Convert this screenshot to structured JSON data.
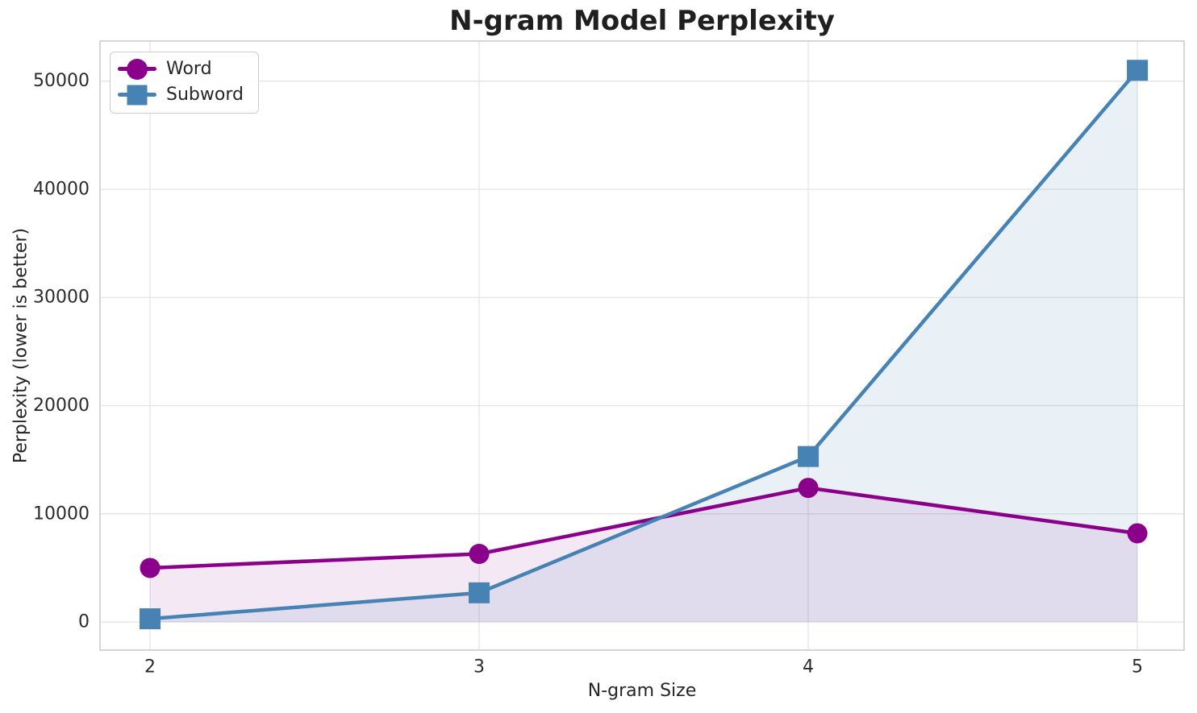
{
  "chart_data": {
    "type": "line",
    "title": "N-gram Model Perplexity",
    "xlabel": "N-gram Size",
    "ylabel": "Perplexity (lower is better)",
    "x": [
      2,
      3,
      4,
      5
    ],
    "series": [
      {
        "name": "Word",
        "marker": "circle",
        "color": "#8B008B",
        "fill_alpha": 0.09,
        "values": [
          5000,
          6300,
          12400,
          8200
        ]
      },
      {
        "name": "Subword",
        "marker": "square",
        "color": "#4682B4",
        "fill_alpha": 0.12,
        "values": [
          300,
          2700,
          15300,
          51000
        ]
      }
    ],
    "xticks": [
      2,
      3,
      4,
      5
    ],
    "yticks": [
      0,
      10000,
      20000,
      30000,
      40000,
      50000
    ],
    "xlim": [
      1.848,
      5.142
    ],
    "ylim": [
      -2600,
      53700
    ],
    "grid": true,
    "area_baseline": 0,
    "legend_position": "upper left",
    "colors": {
      "background": "#ffffff",
      "grid": "#e4e4e4",
      "spine": "#cccccc",
      "tick_text": "#2b2b2b",
      "title_text": "#1f1f1f"
    }
  }
}
